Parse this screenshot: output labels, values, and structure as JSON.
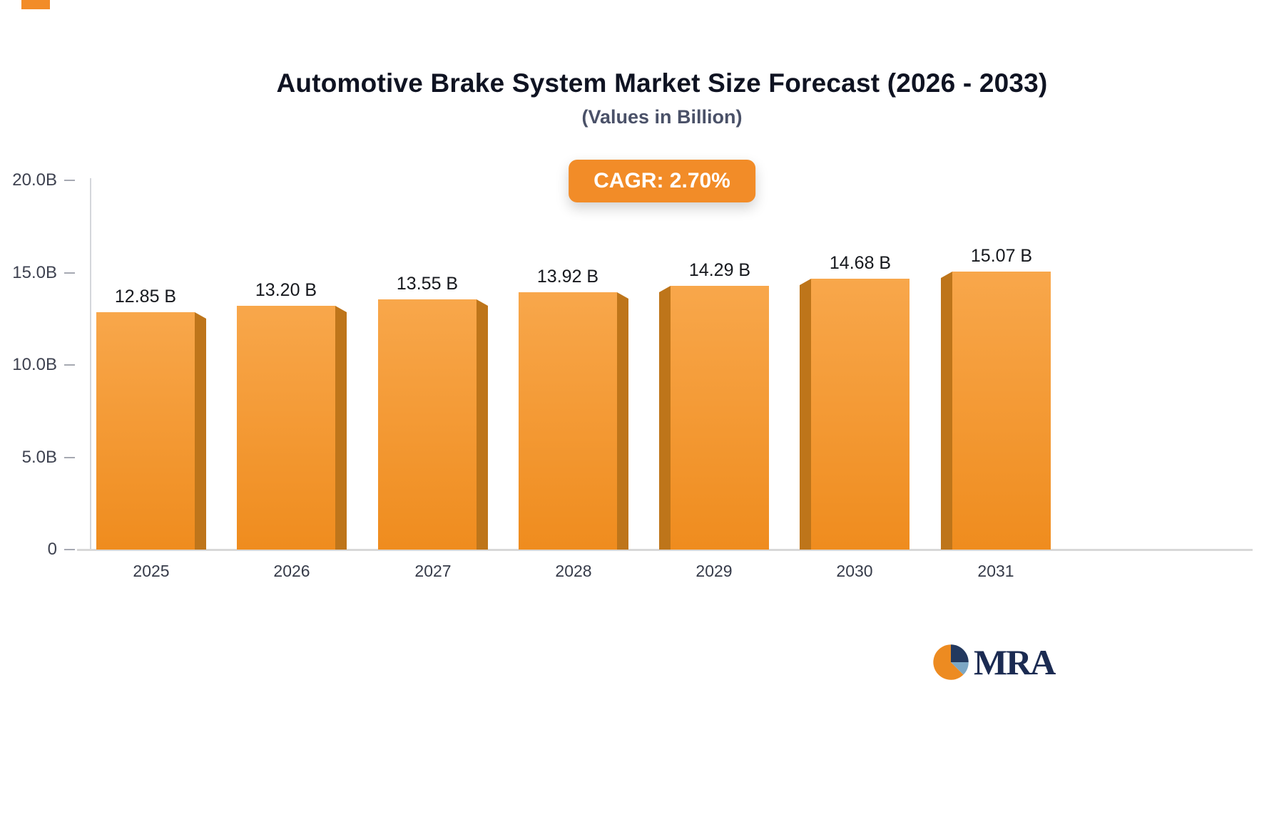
{
  "chart_data": {
    "type": "bar",
    "title": "Automotive Brake System Market Size Forecast (2026 - 2033)",
    "subtitle": "(Values in Billion)",
    "badge_label": "CAGR: 2.70%",
    "categories": [
      "2025",
      "2026",
      "2027",
      "2028",
      "2029",
      "2030",
      "2031"
    ],
    "values": [
      12.85,
      13.2,
      13.55,
      13.92,
      14.29,
      14.68,
      15.07
    ],
    "value_labels": [
      "12.85 B",
      "13.20 B",
      "13.55 B",
      "13.92 B",
      "14.29 B",
      "14.68 B",
      "15.07 B"
    ],
    "xlabel": "",
    "ylabel": "",
    "ylim": [
      0,
      20
    ],
    "yticks": [
      {
        "label": "20.0B",
        "value": 20
      },
      {
        "label": "15.0B",
        "value": 15
      },
      {
        "label": "10.0B",
        "value": 10
      },
      {
        "label": "5.0B",
        "value": 5
      },
      {
        "label": "0",
        "value": 0
      }
    ],
    "grid": false,
    "legend": false,
    "colors": {
      "accent": "#F28C28",
      "bar_face_top": "#F8A74B",
      "bar_face_bottom": "#EF8C1E",
      "bar_side": "#BE751A",
      "axis_line": "#D4D6DB",
      "baseline": "#D8D8D8",
      "tick_text": "#3E4250"
    }
  },
  "logo": {
    "text": "MRA"
  }
}
